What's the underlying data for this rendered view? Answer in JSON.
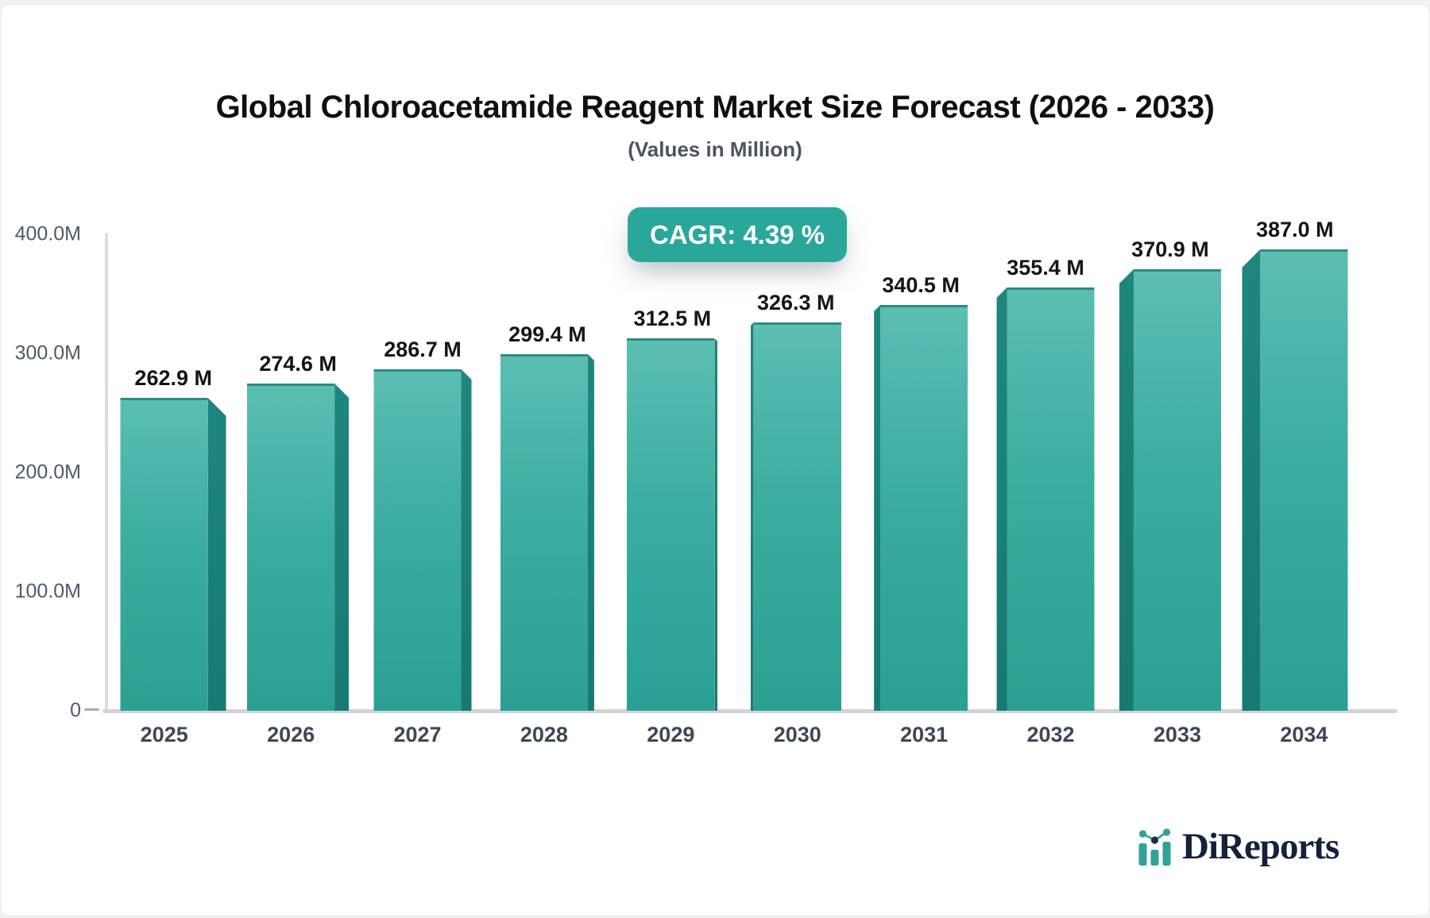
{
  "header": {
    "title": "Global Chloroacetamide Reagent Market Size Forecast (2026 - 2033)",
    "subtitle": "(Values in Million)"
  },
  "cagr_badge": {
    "text": "CAGR: 4.39 %",
    "background": "#2aa79b",
    "text_color": "#ffffff"
  },
  "chart_data": {
    "type": "bar",
    "title": "Global Chloroacetamide Reagent Market Size Forecast (2026 - 2033)",
    "subtitle": "(Values in Million)",
    "categories": [
      "2025",
      "2026",
      "2027",
      "2028",
      "2029",
      "2030",
      "2031",
      "2032",
      "2033",
      "2034"
    ],
    "values": [
      262.9,
      274.6,
      286.7,
      299.4,
      312.5,
      326.3,
      340.5,
      355.4,
      370.9,
      387.0
    ],
    "value_labels": [
      "262.9 M",
      "274.6 M",
      "286.7 M",
      "299.4 M",
      "312.5 M",
      "326.3 M",
      "340.5 M",
      "355.4 M",
      "370.9 M",
      "387.0 M"
    ],
    "unit": "Million",
    "xlabel": "",
    "ylabel": "",
    "ylim": [
      0,
      400
    ],
    "ytick_values": [
      400,
      300,
      200,
      100,
      0
    ],
    "ytick_labels": [
      "400.0M",
      "300.0M",
      "200.0M",
      "100.0M",
      "0"
    ],
    "grid": false,
    "legend": "none",
    "bar_face_color_top": "#5cbeb3",
    "bar_face_color_bottom": "#2aa093",
    "bar_side_color": "#1b7e76",
    "cagr": "4.39 %"
  },
  "branding": {
    "name": "DiReports",
    "icon": "bar-chart-logo-icon",
    "text_color": "#14213c",
    "accent_color": "#2fa299",
    "dot_color": "#1b2b47"
  }
}
